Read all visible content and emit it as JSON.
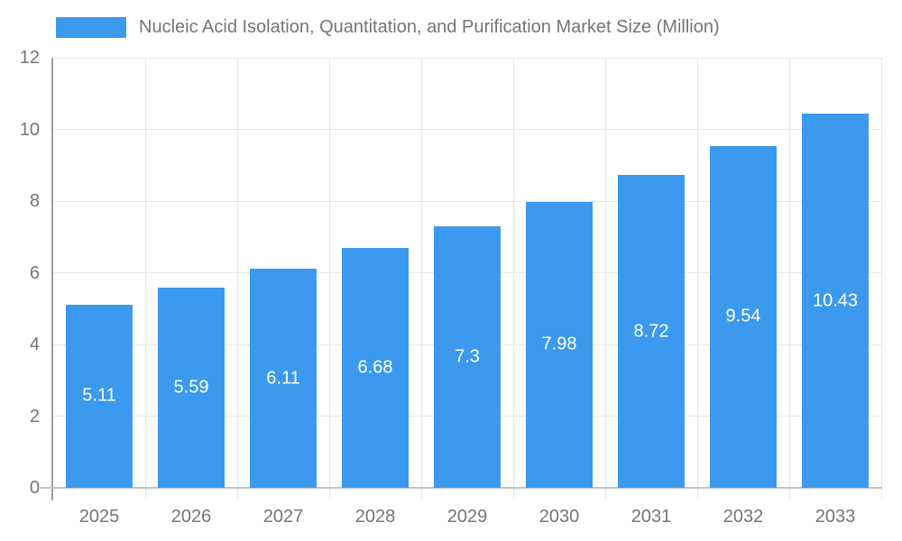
{
  "chart_data": {
    "type": "bar",
    "title": "Nucleic Acid Isolation, Quantitation, and Purification Market Size (Million)",
    "legend_position": "top",
    "categories": [
      "2025",
      "2026",
      "2027",
      "2028",
      "2029",
      "2030",
      "2031",
      "2032",
      "2033"
    ],
    "series": [
      {
        "name": "Nucleic Acid Isolation, Quantitation, and Purification Market Size (Million)",
        "values": [
          5.11,
          5.59,
          6.11,
          6.68,
          7.3,
          7.98,
          8.72,
          9.54,
          10.43
        ],
        "value_labels": [
          "5.11",
          "5.59",
          "6.11",
          "6.68",
          "7.3",
          "7.98",
          "8.72",
          "9.54",
          "10.43"
        ],
        "color": "#3b99ee"
      }
    ],
    "xlabel": "",
    "ylabel": "",
    "ylim": [
      0,
      12
    ],
    "yticks": [
      0,
      2,
      4,
      6,
      8,
      10,
      12
    ],
    "ytick_labels": [
      "0",
      "2",
      "4",
      "6",
      "8",
      "10",
      "12"
    ],
    "grid": true,
    "value_labels_inside_bars": true,
    "colors": {
      "bar": "#3b99ee",
      "value_label": "#ffffff",
      "axis_text": "#757575",
      "legend_text": "#757575",
      "gridline": "#e6e6e6",
      "y_axis_line": "#9e9e9e",
      "x_baseline": "#c2c2c2",
      "background": "#ffffff"
    }
  }
}
